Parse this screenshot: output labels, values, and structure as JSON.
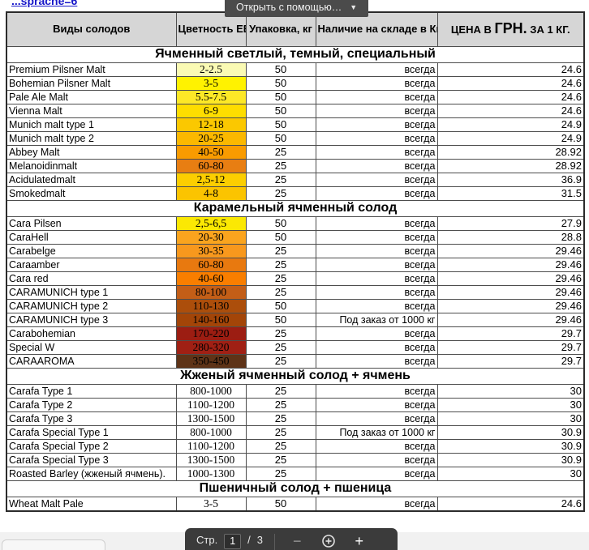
{
  "top_bar": {
    "link_text": "...sprache=6",
    "open_with_label": "Открыть с помощью…",
    "open_with_arrow": "▼"
  },
  "table": {
    "header": {
      "kinds": "Виды солодов",
      "color": "Цветность ЕВС",
      "pack": "Упаковка, кг",
      "stock": "Наличие на складе в Киеве",
      "price_parts": [
        "ЦЕНА В ",
        "ГРН.",
        " ЗА 1 КГ."
      ]
    },
    "sections": [
      {
        "title": "Ячменный светлый, темный, специальный",
        "rows": [
          {
            "name": "Premium Pilsner Malt",
            "ebc": "2-2.5",
            "ebc_color": "#fafab4",
            "pack": "50",
            "stock": "всегда",
            "price": "24.6"
          },
          {
            "name": "Bohemian Pilsner Malt",
            "ebc": "3-5",
            "ebc_color": "#fff200",
            "pack": "50",
            "stock": "всегда",
            "price": "24.6"
          },
          {
            "name": "Pale Ale Malt",
            "ebc": "5.5-7.5",
            "ebc_color": "#fce827",
            "pack": "50",
            "stock": "всегда",
            "price": "24.6"
          },
          {
            "name": "Vienna Malt",
            "ebc": "6-9",
            "ebc_color": "#fedd00",
            "pack": "50",
            "stock": "всегда",
            "price": "24.6"
          },
          {
            "name": "Munich malt  type 1",
            "ebc": "12-18",
            "ebc_color": "#fbc800",
            "pack": "50",
            "stock": "всегда",
            "price": "24.9"
          },
          {
            "name": "Munich malt  type 2",
            "ebc": "20-25",
            "ebc_color": "#fbb800",
            "pack": "50",
            "stock": "всегда",
            "price": "24.9"
          },
          {
            "name": "Abbey Malt",
            "ebc": "40-50",
            "ebc_color": "#f99b00",
            "pack": "25",
            "stock": "всегда",
            "price": "28.92"
          },
          {
            "name": "Melanoidinmalt",
            "ebc": "60-80",
            "ebc_color": "#e87e12",
            "pack": "25",
            "stock": "всегда",
            "price": "28.92"
          },
          {
            "name": "Acidulatedmalt",
            "ebc": "2,5-12",
            "ebc_color": "#fcce00",
            "pack": "25",
            "stock": "всегда",
            "price": "36.9"
          },
          {
            "name": "Smokedmalt",
            "ebc": "4-8",
            "ebc_color": "#fbc400",
            "pack": "25",
            "stock": "всегда",
            "price": "31.5"
          }
        ]
      },
      {
        "title": "Карамельный ячменный солод",
        "rows": [
          {
            "name": "Cara Pilsen",
            "ebc": "2,5-6,5",
            "ebc_color": "#fbe803",
            "pack": "50",
            "stock": "всегда",
            "price": "27.9"
          },
          {
            "name": "CaraHell",
            "ebc": "20-30",
            "ebc_color": "#faa41e",
            "pack": "50",
            "stock": "всегда",
            "price": "28.8"
          },
          {
            "name": "Carabelge",
            "ebc": "30-35",
            "ebc_color": "#f8981d",
            "pack": "25",
            "stock": "всегда",
            "price": "29.46"
          },
          {
            "name": "Caraamber",
            "ebc": "60-80",
            "ebc_color": "#e8790f",
            "pack": "25",
            "stock": "всегда",
            "price": "29.46"
          },
          {
            "name": "Cara red",
            "ebc": "40-60",
            "ebc_color": "#f97e00",
            "pack": "25",
            "stock": "всегда",
            "price": "29.46"
          },
          {
            "name": "CARAMUNICH type 1",
            "ebc": "80-100",
            "ebc_color": "#c35e17",
            "pack": "25",
            "stock": "всегда",
            "price": "29.46"
          },
          {
            "name": "CARAMUNICH  type 2",
            "ebc": "110-130",
            "ebc_color": "#ac4e0b",
            "pack": "50",
            "stock": "всегда",
            "price": "29.46"
          },
          {
            "name": "CARAMUNICH  type 3",
            "ebc": "140-160",
            "ebc_color": "#a34508",
            "pack": "50",
            "stock": "Под заказ от 1000 кг",
            "price": "29.46"
          },
          {
            "name": "Carabohemian",
            "ebc": "170-220",
            "ebc_color": "#9c1d12",
            "pack": "25",
            "stock": "всегда",
            "price": "29.7"
          },
          {
            "name": "Special W",
            "ebc": "280-320",
            "ebc_color": "#a02014",
            "pack": "25",
            "stock": "всегда",
            "price": "29.7"
          },
          {
            "name": "CARAAROMA",
            "ebc": "350-450",
            "ebc_color": "#5e3317",
            "pack": "25",
            "stock": "всегда",
            "price": "29.7"
          }
        ]
      },
      {
        "title": "Жженый ячменный солод + ячмень",
        "rows": [
          {
            "name": "Carafa Type 1",
            "ebc": "800-1000",
            "ebc_color": "#ffffff",
            "pack": "25",
            "stock": "всегда",
            "price": "30"
          },
          {
            "name": "Carafa Type 2",
            "ebc": "1100-1200",
            "ebc_color": "#ffffff",
            "pack": "25",
            "stock": "всегда",
            "price": "30"
          },
          {
            "name": "Carafa  Type 3",
            "ebc": "1300-1500",
            "ebc_color": "#ffffff",
            "pack": "25",
            "stock": "всегда",
            "price": "30"
          },
          {
            "name": "Carafa Special  Type 1",
            "ebc": "800-1000",
            "ebc_color": "#ffffff",
            "pack": "25",
            "stock": "Под заказ от 1000 кг",
            "price": "30.9"
          },
          {
            "name": "Carafa  Special Type 2",
            "ebc": "1100-1200",
            "ebc_color": "#ffffff",
            "pack": "25",
            "stock": "всегда",
            "price": "30.9"
          },
          {
            "name": "Carafa Special Type 3",
            "ebc": "1300-1500",
            "ebc_color": "#ffffff",
            "pack": "25",
            "stock": "всегда",
            "price": "30.9"
          },
          {
            "name": "Roasted Barley (жженый ячмень).",
            "ebc": "1000-1300",
            "ebc_color": "#ffffff",
            "pack": "25",
            "stock": "всегда",
            "price": "30"
          }
        ]
      },
      {
        "title": "Пшеничный солод + пшеница",
        "rows": [
          {
            "name": "Wheat Malt Pale",
            "ebc": "3-5",
            "ebc_color": "#ffffff",
            "pack": "50",
            "stock": "всегда",
            "price": "24.6"
          }
        ]
      }
    ]
  },
  "toolbar": {
    "page_label": "Стр.",
    "current_page": "1",
    "page_divider": "/",
    "total_pages": "3",
    "zoom_out_label": "−",
    "zoom_in_label": "+"
  }
}
